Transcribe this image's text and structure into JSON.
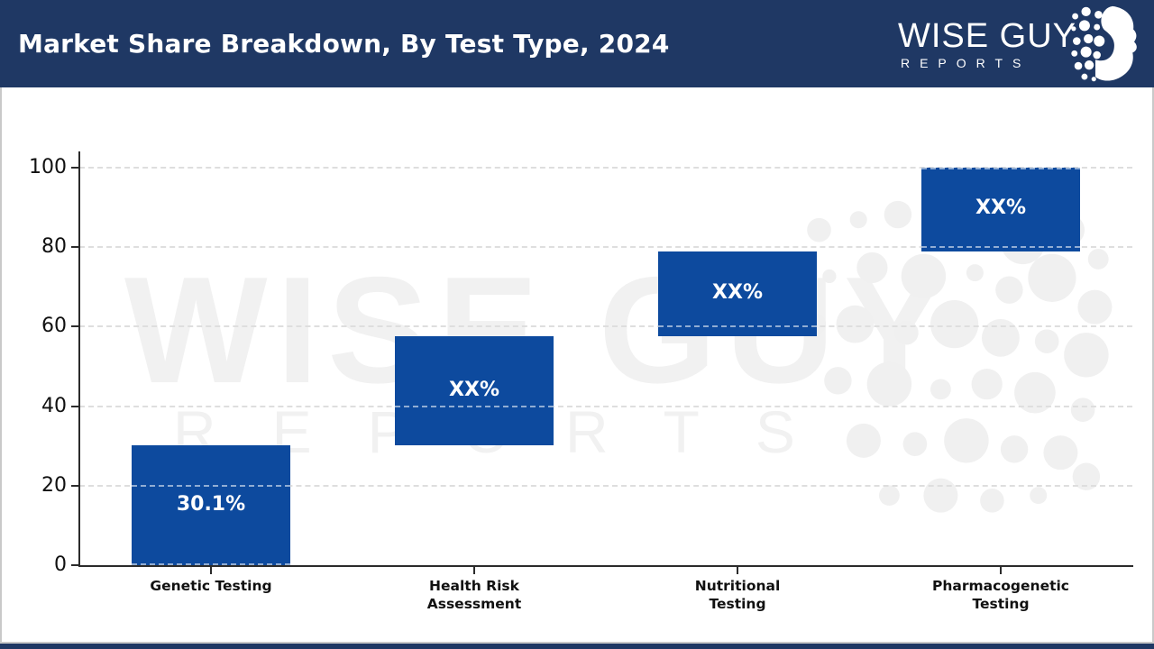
{
  "header": {
    "title": "Market Share Breakdown, By Test Type, 2024",
    "brand": {
      "line1": "WISE GUY",
      "line2": "REPORTS"
    },
    "bg_color": "#1f3864"
  },
  "watermark": {
    "line1": "WISE GUY",
    "line2": "REPORTS"
  },
  "colors": {
    "navy": "#1f3864",
    "bar_blue": "#0d4a9e",
    "grid_gray": "#dedede",
    "frame_gray": "#c9c9c9"
  },
  "chart_data": {
    "type": "bar",
    "subtype": "waterfall",
    "title": "Market Share Breakdown, By Test Type, 2024",
    "xlabel": "",
    "ylabel": "",
    "categories": [
      "Genetic Testing",
      "Health Risk\nAssessment",
      "Nutritional\nTesting",
      "Pharmacogenetic\nTesting"
    ],
    "segments": [
      {
        "category": "Genetic Testing",
        "start": 0,
        "end": 30.1,
        "label": "30.1%"
      },
      {
        "category": "Health Risk Assessment",
        "start": 30.1,
        "end": 57.5,
        "label": "XX%"
      },
      {
        "category": "Nutritional Testing",
        "start": 57.5,
        "end": 79,
        "label": "XX%"
      },
      {
        "category": "Pharmacogenetic Testing",
        "start": 79,
        "end": 100,
        "label": "XX%"
      }
    ],
    "bar_labels": [
      "30.1%",
      "XX%",
      "XX%",
      "XX%"
    ],
    "yticks": [
      0,
      20,
      40,
      60,
      80,
      100
    ],
    "ylim": [
      0,
      100
    ],
    "grid": "horizontal dashed",
    "legend": "none",
    "bar_color": "#0d4a9e"
  }
}
